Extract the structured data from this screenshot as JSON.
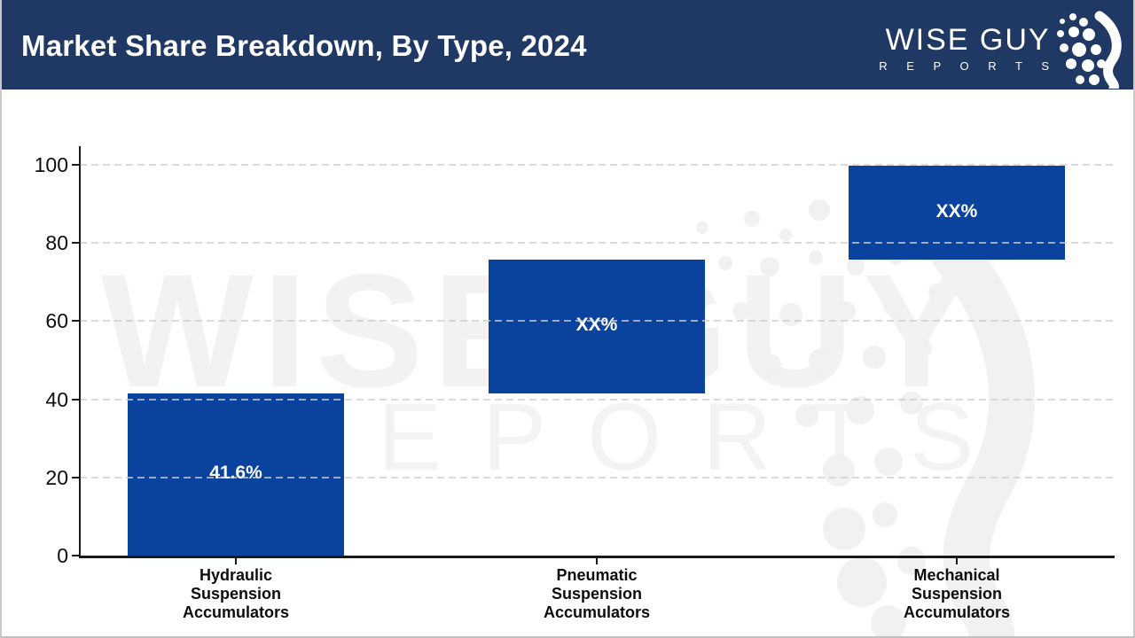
{
  "header": {
    "title": "Market Share Breakdown, By Type, 2024",
    "logo": {
      "line1": "WISE GUY",
      "line2": "R E P O R T S"
    }
  },
  "watermark": {
    "line1": "WISE GUY",
    "line2": "REPORTS"
  },
  "colors": {
    "header_bg": "#1f3864",
    "bar": "#09439d",
    "bar_label": "#ffffff",
    "gridline": "#d9d9d9",
    "axis": "#1a1a1a",
    "watermark": "#f2f2f2"
  },
  "chart_data": {
    "type": "bar",
    "subtype": "waterfall",
    "title": "Market Share Breakdown, By Type, 2024",
    "xlabel": "",
    "ylabel": "",
    "ylim": [
      0,
      100
    ],
    "yticks": [
      0,
      20,
      40,
      60,
      80,
      100
    ],
    "grid": "horizontal dashed",
    "legend": "none",
    "categories": [
      "Hydraulic Suspension Accumulators",
      "Pneumatic Suspension Accumulators",
      "Mechanical Suspension Accumulators"
    ],
    "segments": [
      {
        "category": "Hydraulic Suspension Accumulators",
        "start": 0,
        "end": 41.6,
        "label": "41.6%"
      },
      {
        "category": "Pneumatic Suspension Accumulators",
        "start": 41.6,
        "end": 75.8,
        "label": "XX%"
      },
      {
        "category": "Mechanical Suspension Accumulators",
        "start": 75.8,
        "end": 99.8,
        "label": "XX%"
      }
    ]
  }
}
